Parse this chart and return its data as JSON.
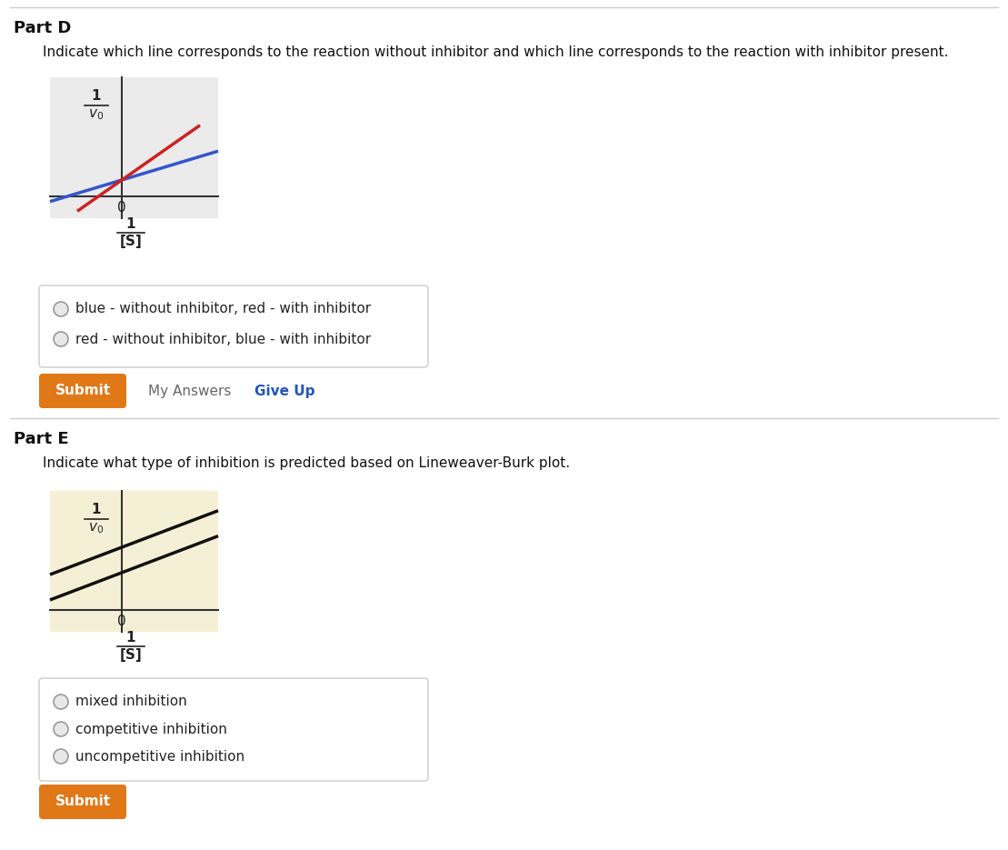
{
  "page_bg": "#ffffff",
  "part_d_title": "Part D",
  "part_d_instruction": "Indicate which line corresponds to the reaction without inhibitor and which line corresponds to the reaction with inhibitor present.",
  "part_e_title": "Part E",
  "part_e_instruction": "Indicate what type of inhibition is predicted based on Lineweaver-Burk plot.",
  "graph1_bg": "#ebebeb",
  "graph2_bg": "#f5f0d5",
  "blue_color": "#3355cc",
  "red_color": "#cc2222",
  "black_color": "#111111",
  "option_d1": "blue - without inhibitor, red - with inhibitor",
  "option_d2": "red - without inhibitor, blue - with inhibitor",
  "option_e1": "mixed inhibition",
  "option_e2": "competitive inhibition",
  "option_e3": "uncompetitive inhibition",
  "submit_color": "#e07818",
  "submit_text_color": "#ffffff",
  "submit_label": "Submit",
  "my_answers_text": "My Answers",
  "give_up_text": "Give Up",
  "give_up_color": "#2255bb",
  "separator_color": "#cccccc",
  "choice_border_color": "#cccccc",
  "radio_face": "#e8e8e8",
  "radio_edge": "#999999"
}
